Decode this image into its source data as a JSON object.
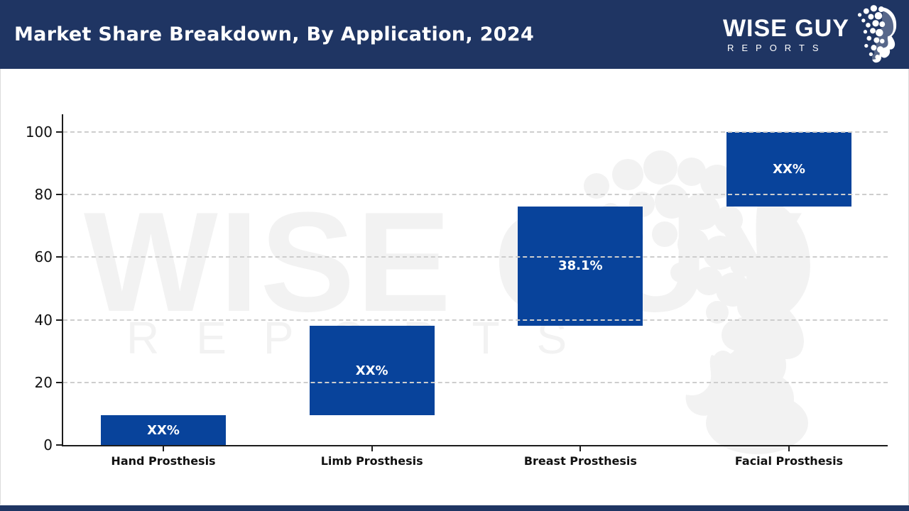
{
  "header": {
    "title": "Market Share Breakdown, By Application, 2024",
    "logo": {
      "name": "WISE GUY",
      "sub": "REPORTS"
    }
  },
  "watermark": {
    "name": "WISE GUY",
    "sub": "REPORTS"
  },
  "chart_data": {
    "type": "bar",
    "subtype": "waterfall-floating-bars",
    "title": "Market Share Breakdown, By Application, 2024",
    "xlabel": "",
    "ylabel": "",
    "categories": [
      "Hand Prosthesis",
      "Limb Prosthesis",
      "Breast Prosthesis",
      "Facial Prosthesis"
    ],
    "series": [
      {
        "name": "Market Share (%)",
        "segments": [
          {
            "category": "Hand Prosthesis",
            "start": 0,
            "end": 9.5,
            "label": "XX%"
          },
          {
            "category": "Limb Prosthesis",
            "start": 9.5,
            "end": 38.1,
            "label": "XX%"
          },
          {
            "category": "Breast Prosthesis",
            "start": 38.1,
            "end": 76.2,
            "label": "38.1%"
          },
          {
            "category": "Facial Prosthesis",
            "start": 76.2,
            "end": 100,
            "label": "XX%"
          }
        ]
      }
    ],
    "yticks": [
      0,
      20,
      40,
      60,
      80,
      100
    ],
    "ylim": [
      0,
      105
    ],
    "grid": "dashed-horizontal",
    "legend": "none",
    "bar_color": "#08439b",
    "bar_label_color": "#ffffff"
  },
  "colors": {
    "header_bg": "#1f3563",
    "footer_bg": "#1f3563",
    "bar": "#08439b",
    "gridline": "#cdcdcd",
    "axis": "#1c1c1c",
    "watermark": "#f2f2f2"
  }
}
